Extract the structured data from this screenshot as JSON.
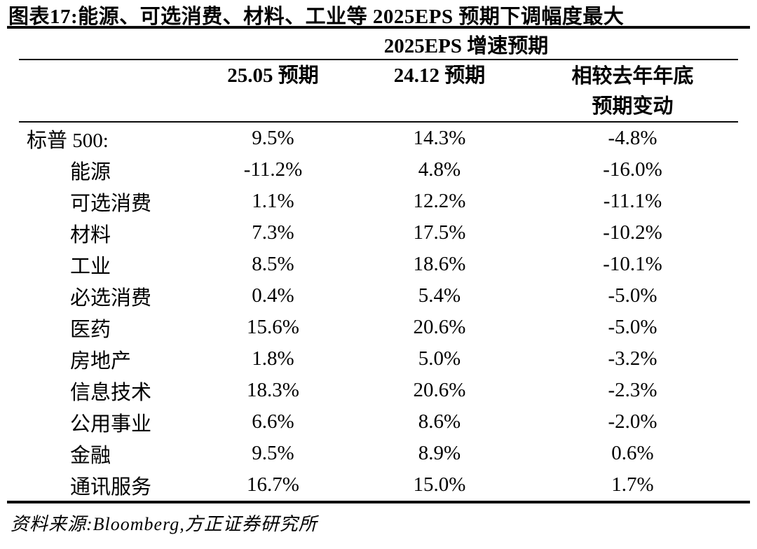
{
  "figure": {
    "title": "图表17:能源、可选消费、材料、工业等 2025EPS 预期下调幅度最大",
    "source": "资料来源:Bloomberg,方正证券研究所"
  },
  "table": {
    "group_header": "2025EPS 增速预期",
    "col_headers": [
      "25.05 预期",
      "24.12 预期"
    ],
    "col3_header_line1": "相较去年年底",
    "col3_header_line2": "预期变动",
    "rows": [
      {
        "label": "标普 500:",
        "values": [
          "9.5%",
          "14.3%",
          "-4.8%"
        ]
      },
      {
        "label": "能源",
        "values": [
          "-11.2%",
          "4.8%",
          "-16.0%"
        ]
      },
      {
        "label": "可选消费",
        "values": [
          "1.1%",
          "12.2%",
          "-11.1%"
        ]
      },
      {
        "label": "材料",
        "values": [
          "7.3%",
          "17.5%",
          "-10.2%"
        ]
      },
      {
        "label": "工业",
        "values": [
          "8.5%",
          "18.6%",
          "-10.1%"
        ]
      },
      {
        "label": "必选消费",
        "values": [
          "0.4%",
          "5.4%",
          "-5.0%"
        ]
      },
      {
        "label": "医药",
        "values": [
          "15.6%",
          "20.6%",
          "-5.0%"
        ]
      },
      {
        "label": "房地产",
        "values": [
          "1.8%",
          "5.0%",
          "-3.2%"
        ]
      },
      {
        "label": "信息技术",
        "values": [
          "18.3%",
          "20.6%",
          "-2.3%"
        ]
      },
      {
        "label": "公用事业",
        "values": [
          "6.6%",
          "8.6%",
          "-2.0%"
        ]
      },
      {
        "label": "金融",
        "values": [
          "9.5%",
          "8.9%",
          "0.6%"
        ]
      },
      {
        "label": "通讯服务",
        "values": [
          "16.7%",
          "15.0%",
          "1.7%"
        ]
      }
    ]
  },
  "chart_data": {
    "type": "table",
    "title": "2025EPS 增速预期",
    "caption": "图表17:能源、可选消费、材料、工业等 2025EPS 预期下调幅度最大",
    "columns": [
      "",
      "25.05 预期",
      "24.12 预期",
      "相较去年年底 预期变动"
    ],
    "rows": [
      [
        "标普 500:",
        "9.5%",
        "14.3%",
        "-4.8%"
      ],
      [
        "能源",
        "-11.2%",
        "4.8%",
        "-16.0%"
      ],
      [
        "可选消费",
        "1.1%",
        "12.2%",
        "-11.1%"
      ],
      [
        "材料",
        "7.3%",
        "17.5%",
        "-10.2%"
      ],
      [
        "工业",
        "8.5%",
        "18.6%",
        "-10.1%"
      ],
      [
        "必选消费",
        "0.4%",
        "5.4%",
        "-5.0%"
      ],
      [
        "医药",
        "15.6%",
        "20.6%",
        "-5.0%"
      ],
      [
        "房地产",
        "1.8%",
        "5.0%",
        "-3.2%"
      ],
      [
        "信息技术",
        "18.3%",
        "20.6%",
        "-2.3%"
      ],
      [
        "公用事业",
        "6.6%",
        "8.6%",
        "-2.0%"
      ],
      [
        "金融",
        "9.5%",
        "8.9%",
        "0.6%"
      ],
      [
        "通讯服务",
        "16.7%",
        "15.0%",
        "1.7%"
      ]
    ],
    "source": "资料来源:Bloomberg,方正证券研究所",
    "units": "percent",
    "text_color": "#000000",
    "background_color": "#ffffff"
  }
}
